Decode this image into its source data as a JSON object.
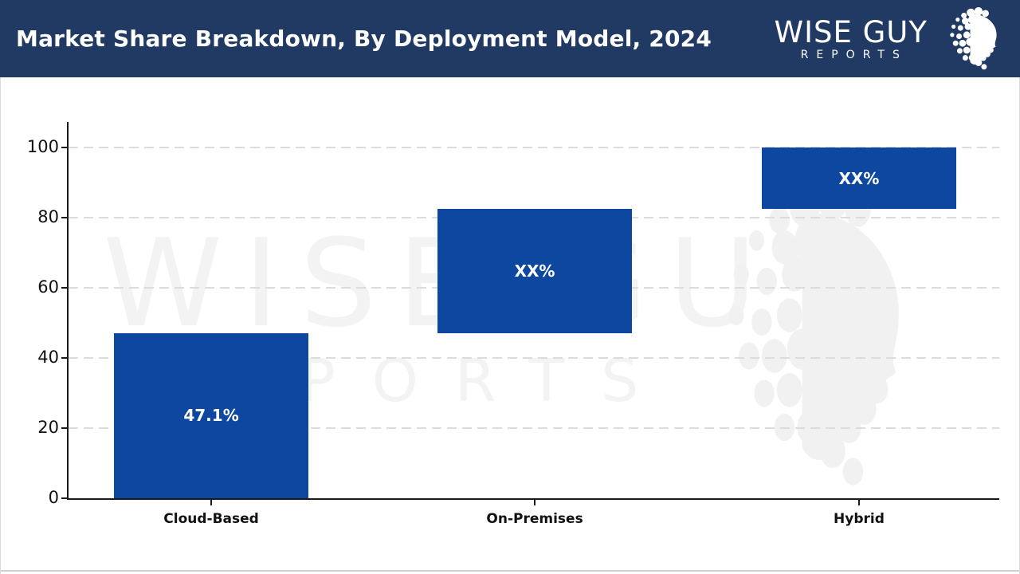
{
  "header": {
    "title": "Market Share Breakdown, By Deployment Model, 2024",
    "bg_color": "#213A64",
    "logo": {
      "wordmark": "WISE GUY",
      "subtext": "REPORTS"
    }
  },
  "watermark": {
    "line1": "WISE GUY",
    "line2": "REPORTS",
    "color": "#F3F3F3"
  },
  "chart_data": {
    "type": "bar",
    "variant": "waterfall-stacked-percent",
    "title": "Market Share Breakdown, By Deployment Model, 2024",
    "categories": [
      "Cloud-Based",
      "On-Premises",
      "Hybrid"
    ],
    "bars": [
      {
        "category": "Cloud-Based",
        "label": "47.1%",
        "start": 0,
        "end": 47.1
      },
      {
        "category": "On-Premises",
        "label": "XX%",
        "start": 47.1,
        "end": 82.4
      },
      {
        "category": "Hybrid",
        "label": "XX%",
        "start": 82.4,
        "end": 100
      }
    ],
    "xlabel": "",
    "ylabel": "",
    "y_ticks": [
      0,
      20,
      40,
      60,
      80,
      100
    ],
    "ylim": [
      0,
      107
    ],
    "grid": "horizontal-dashed",
    "legend": "none",
    "colors": {
      "bar": "#0D47A0",
      "bar_label": "#FFFFFF",
      "axis": "#1A1A1A",
      "gridline": "#DCDCDC"
    }
  }
}
